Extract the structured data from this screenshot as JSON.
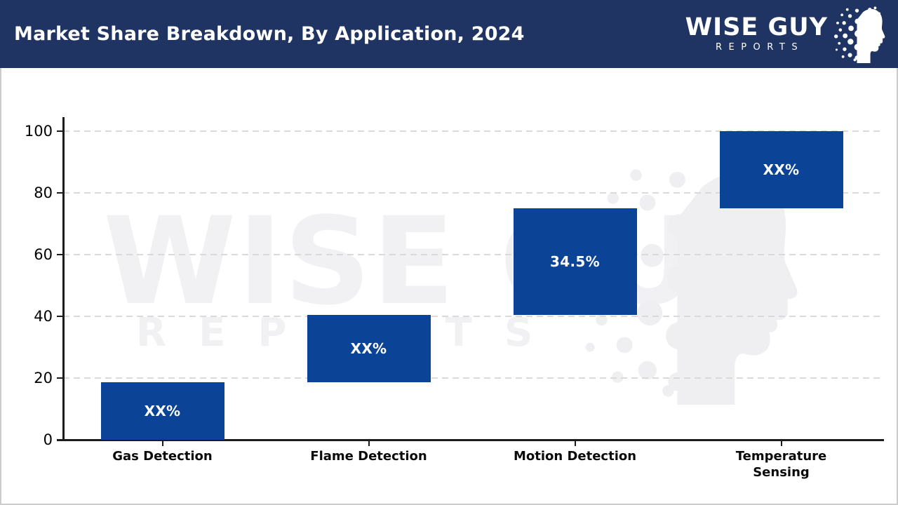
{
  "header": {
    "title": "Market Share Breakdown, By Application, 2024",
    "bg_color": "#1f3462",
    "logo": {
      "line1": "WISE GUY",
      "line2": "REPORTS"
    }
  },
  "watermark": {
    "line1": "WISE GU",
    "line2": "REPORTS"
  },
  "chart_data": {
    "type": "bar",
    "subtype": "waterfall-floating-bars",
    "title": "Market Share Breakdown, By Application, 2024",
    "categories": [
      "Gas Detection",
      "Flame Detection",
      "Motion Detection",
      "Temperature Sensing"
    ],
    "series": [
      {
        "name": "Market Share %",
        "segments": [
          {
            "category": "Gas Detection",
            "start": 0,
            "end": 18.7,
            "label": "XX%"
          },
          {
            "category": "Flame Detection",
            "start": 18.7,
            "end": 40.5,
            "label": "XX%"
          },
          {
            "category": "Motion Detection",
            "start": 40.5,
            "end": 75,
            "label": "34.5%"
          },
          {
            "category": "Temperature Sensing",
            "start": 75,
            "end": 100,
            "label": "XX%"
          }
        ]
      }
    ],
    "xlabel": "",
    "ylabel": "",
    "ylim": [
      0,
      100
    ],
    "yticks": [
      0,
      20,
      40,
      60,
      80,
      100
    ],
    "grid": "horizontal-dashed",
    "legend": "none",
    "bar_color": "#0b4397",
    "bar_label_color": "#ffffff",
    "axis_color": "#1c1c1c",
    "gridline_color": "#dadada"
  }
}
